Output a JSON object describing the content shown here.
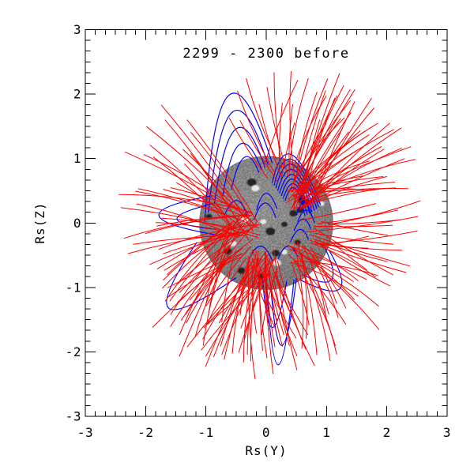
{
  "page": {
    "background": "#ffffff"
  },
  "chart_data": {
    "type": "line",
    "title": "2299 - 2300 before",
    "xlabel": "Rs(Y)",
    "ylabel": "Rs(Z)",
    "xlim": [
      -3,
      3
    ],
    "ylim": [
      -3,
      3
    ],
    "xticks": [
      -3,
      -2,
      -1,
      0,
      1,
      2,
      3
    ],
    "yticks": [
      -3,
      -2,
      -1,
      0,
      1,
      2,
      3
    ],
    "minor_tick_divisions": 6,
    "grid": false,
    "legend": null,
    "colors": {
      "open_field_line": "#ff0000",
      "closed_field_line": "#0000ff",
      "axis": "#000000",
      "text": "#000000",
      "disk_center": "#a4a4a4",
      "disk_mid": "#919191",
      "disk_edge": "#7a7a7a"
    },
    "sun_disk": {
      "center": [
        0,
        0
      ],
      "radius_rs": 1.07,
      "description": "grayscale photospheric magnetogram with bipolar active regions",
      "features_dark": [
        [
          -0.24,
          0.63,
          0.06
        ],
        [
          0.62,
          0.36,
          0.075
        ],
        [
          0.45,
          0.15,
          0.05
        ],
        [
          0.07,
          -0.13,
          0.06
        ],
        [
          0.16,
          -0.47,
          0.05
        ],
        [
          -0.63,
          -0.44,
          0.05
        ],
        [
          -0.41,
          -0.74,
          0.05
        ],
        [
          -0.09,
          -0.83,
          0.045
        ],
        [
          -0.95,
          0.1,
          0.04
        ],
        [
          0.3,
          -0.02,
          0.04
        ],
        [
          0.52,
          -0.3,
          0.04
        ],
        [
          0.56,
          0.2,
          0.045
        ]
      ],
      "features_light": [
        [
          -0.18,
          0.54,
          0.05
        ],
        [
          0.7,
          0.42,
          0.055
        ],
        [
          -0.36,
          0.04,
          0.05
        ],
        [
          0.18,
          -0.62,
          0.05
        ],
        [
          -0.55,
          -0.32,
          0.045
        ],
        [
          0.3,
          -0.45,
          0.04
        ],
        [
          0.92,
          0.3,
          0.035
        ],
        [
          -0.05,
          0.02,
          0.04
        ]
      ]
    },
    "open_field_groups": [
      {
        "name": "east-fan",
        "count": 46,
        "foot": [
          -0.35,
          -0.05,
          0.55
        ],
        "theta": [
          128,
          238
        ],
        "r": [
          1.6,
          2.65
        ],
        "bow": 0.05
      },
      {
        "name": "west-upper-fan",
        "count": 40,
        "foot": [
          0.55,
          0.35,
          0.45
        ],
        "theta": [
          12,
          66
        ],
        "r": [
          1.7,
          2.7
        ],
        "bow": -0.05
      },
      {
        "name": "west-fan",
        "count": 18,
        "foot": [
          0.8,
          -0.15,
          0.5
        ],
        "theta": [
          -26,
          10
        ],
        "r": [
          1.7,
          2.6
        ],
        "bow": 0.03
      },
      {
        "name": "south-fan",
        "count": 40,
        "foot": [
          -0.05,
          -0.6,
          0.5
        ],
        "theta": [
          235,
          292
        ],
        "r": [
          1.5,
          2.45
        ],
        "bow": 0.04
      },
      {
        "name": "southwest-fan",
        "count": 22,
        "foot": [
          0.55,
          -0.45,
          0.4
        ],
        "theta": [
          286,
          338
        ],
        "r": [
          1.7,
          2.6
        ],
        "bow": -0.06
      },
      {
        "name": "southeast-fan",
        "count": 12,
        "foot": [
          -0.45,
          -0.5,
          0.4
        ],
        "theta": [
          210,
          246
        ],
        "r": [
          1.5,
          2.2
        ],
        "bow": 0.05
      },
      {
        "name": "north-fan",
        "count": 10,
        "foot": [
          0.15,
          0.8,
          0.45
        ],
        "theta": [
          72,
          112
        ],
        "r": [
          1.6,
          2.45
        ],
        "bow": -0.04
      },
      {
        "name": "northwest-sparse",
        "count": 8,
        "foot": [
          0.5,
          0.7,
          0.3
        ],
        "theta": [
          48,
          82
        ],
        "r": [
          1.7,
          2.5
        ],
        "bow": -0.05
      }
    ],
    "closed_field_loops": [
      [
        -1.02,
        0.02,
        -0.62,
        1.98,
        0.1,
        0.93
      ],
      [
        -0.96,
        0.16,
        -0.56,
        1.72,
        0.03,
        0.9
      ],
      [
        -0.86,
        0.3,
        -0.5,
        1.46,
        -0.02,
        0.86
      ],
      [
        -0.72,
        0.42,
        -0.44,
        1.22,
        -0.07,
        0.82
      ],
      [
        -0.58,
        0.52,
        -0.36,
        1.02,
        -0.12,
        0.78
      ],
      [
        -0.92,
        0.42,
        -1.78,
        0.12,
        -0.86,
        -0.18
      ],
      [
        -0.88,
        0.3,
        -1.48,
        0.06,
        -0.82,
        -0.1
      ],
      [
        0.1,
        0.62,
        0.42,
        1.06,
        0.9,
        0.28
      ],
      [
        0.13,
        0.58,
        0.44,
        0.98,
        0.87,
        0.25
      ],
      [
        0.16,
        0.54,
        0.45,
        0.9,
        0.84,
        0.22
      ],
      [
        0.19,
        0.5,
        0.46,
        0.82,
        0.8,
        0.19
      ],
      [
        0.22,
        0.46,
        0.47,
        0.74,
        0.76,
        0.17
      ],
      [
        0.25,
        0.42,
        0.47,
        0.67,
        0.72,
        0.15
      ],
      [
        0.28,
        0.38,
        0.48,
        0.6,
        0.68,
        0.13
      ],
      [
        0.31,
        0.34,
        0.48,
        0.54,
        0.64,
        0.11
      ],
      [
        0.5,
        0.12,
        0.63,
        0.32,
        0.76,
        0.1
      ],
      [
        0.52,
        0.02,
        0.67,
        0.2,
        0.8,
        0.0
      ],
      [
        0.46,
        -0.12,
        0.61,
        0.06,
        0.74,
        -0.1
      ],
      [
        0.4,
        -0.3,
        0.56,
        -0.1,
        0.7,
        -0.26
      ],
      [
        -0.16,
        0.2,
        0.0,
        0.46,
        0.18,
        0.22
      ],
      [
        -0.2,
        0.05,
        -0.02,
        0.31,
        0.16,
        0.08
      ],
      [
        0.0,
        -0.9,
        0.2,
        -2.2,
        0.46,
        -0.88
      ],
      [
        0.07,
        -0.92,
        0.26,
        -1.9,
        0.5,
        -0.86
      ],
      [
        -0.06,
        -0.86,
        0.1,
        -1.62,
        0.34,
        -0.9
      ],
      [
        0.56,
        -0.88,
        1.22,
        -1.02,
        1.04,
        -0.42
      ],
      [
        0.6,
        -0.8,
        1.08,
        -0.88,
        0.97,
        -0.38
      ],
      [
        -0.5,
        -0.85,
        -1.62,
        -1.32,
        -1.15,
        -0.3
      ],
      [
        -0.3,
        -0.6,
        -0.1,
        -0.36,
        0.1,
        -0.58
      ],
      [
        0.2,
        -0.55,
        0.36,
        -0.36,
        0.52,
        -0.52
      ],
      [
        -0.7,
        0.1,
        -0.5,
        0.35,
        -0.32,
        0.12
      ]
    ],
    "random_seed": 42
  }
}
